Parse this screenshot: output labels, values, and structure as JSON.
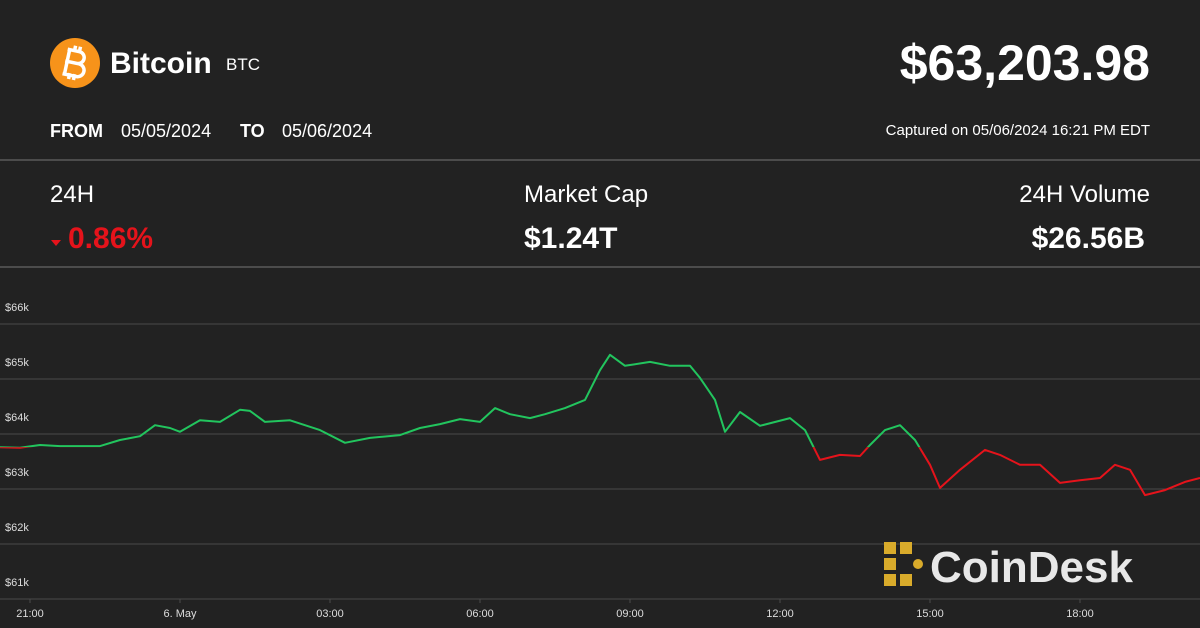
{
  "header": {
    "name": "Bitcoin",
    "symbol": "BTC",
    "price": "$63,203.98",
    "from_label": "FROM",
    "from_date": "05/05/2024",
    "to_label": "TO",
    "to_date": "05/06/2024",
    "captured": "Captured on 05/06/2024 16:21 PM EDT"
  },
  "stats": [
    {
      "label": "24H",
      "value": "0.86%"
    },
    {
      "label": "Market Cap",
      "value": "$1.24T"
    },
    {
      "label": "24H Volume",
      "value": "$26.56B"
    }
  ],
  "brand": "CoinDesk",
  "chart_data": {
    "type": "line",
    "x": [
      -0.6,
      -0.2,
      0.2,
      0.6,
      1.0,
      1.4,
      1.8,
      2.2,
      2.5,
      2.8,
      3.0,
      3.4,
      3.8,
      4.2,
      4.4,
      4.7,
      5.2,
      5.8,
      6.3,
      6.8,
      7.4,
      7.8,
      8.2,
      8.6,
      9.0,
      9.3,
      9.6,
      10.0,
      10.3,
      10.7,
      11.1,
      11.4,
      11.6,
      11.9,
      12.4,
      12.8,
      13.2,
      13.4,
      13.7,
      13.9,
      14.2,
      14.6,
      15.2,
      15.5,
      15.8,
      16.2,
      16.6,
      16.8,
      17.1,
      17.4,
      17.7,
      18.0,
      18.2,
      18.6,
      19.1,
      19.4,
      19.8,
      20.2,
      20.6,
      21.0,
      21.4,
      21.7,
      22.0,
      22.3,
      22.7,
      23.1,
      23.4
    ],
    "series": [
      {
        "name": "BTC",
        "color": "#22c55e",
        "down_color": "#e5131b",
        "values": [
          63760,
          63750,
          63800,
          63780,
          63780,
          63780,
          63890,
          63960,
          64160,
          64110,
          64040,
          64250,
          64220,
          64440,
          64420,
          64220,
          64250,
          64070,
          63840,
          63930,
          63980,
          64110,
          64180,
          64270,
          64220,
          64470,
          64360,
          64290,
          64360,
          64470,
          64620,
          65160,
          65440,
          65240,
          65310,
          65240,
          65240,
          65020,
          64620,
          64040,
          64400,
          64150,
          64290,
          64070,
          63530,
          63620,
          63600,
          63800,
          64070,
          64160,
          63890,
          63440,
          63020,
          63350,
          63710,
          63620,
          63440,
          63440,
          63110,
          63160,
          63200,
          63440,
          63350,
          62890,
          62980,
          63130,
          63200
        ]
      }
    ],
    "xlim": [
      -0.6,
      23.4
    ],
    "xticks": [
      {
        "value": 0,
        "label": "21:00"
      },
      {
        "value": 3,
        "label": "6. May"
      },
      {
        "value": 6,
        "label": "03:00"
      },
      {
        "value": 9,
        "label": "06:00"
      },
      {
        "value": 12,
        "label": "09:00"
      },
      {
        "value": 15,
        "label": "12:00"
      },
      {
        "value": 18,
        "label": "15:00"
      },
      {
        "value": 21,
        "label": "18:00"
      }
    ],
    "ylim": [
      61000,
      67000
    ],
    "yticks": [
      {
        "value": 61000,
        "label": "$61k"
      },
      {
        "value": 62000,
        "label": "$62k"
      },
      {
        "value": 63000,
        "label": "$63k"
      },
      {
        "value": 64000,
        "label": "$64k"
      },
      {
        "value": 65000,
        "label": "$65k"
      },
      {
        "value": 66000,
        "label": "$66k"
      }
    ],
    "grid": true
  }
}
